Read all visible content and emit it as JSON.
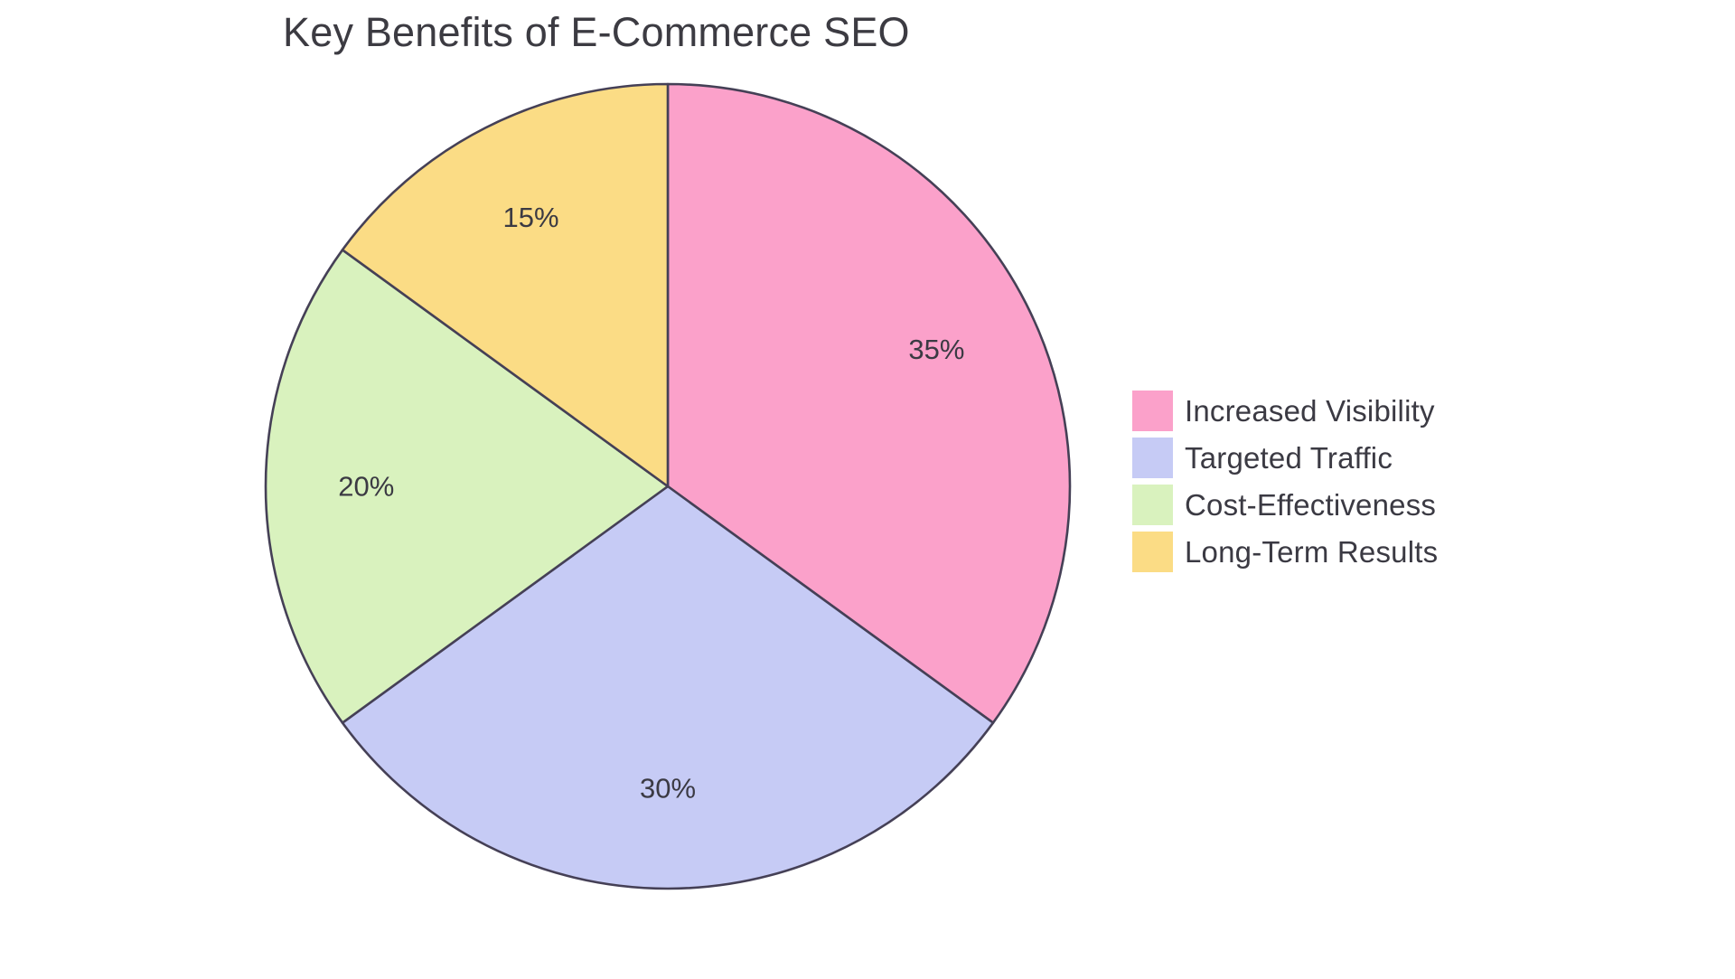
{
  "chart_data": {
    "type": "pie",
    "title": "Key Benefits of E-Commerce SEO",
    "labels": [
      "Increased Visibility",
      "Targeted Traffic",
      "Cost-Effectiveness",
      "Long-Term Results"
    ],
    "values": [
      35,
      30,
      20,
      15
    ],
    "value_labels": [
      "35%",
      "30%",
      "20%",
      "15%"
    ],
    "colors": [
      "#FBA1CA",
      "#C6CBF5",
      "#D9F2BE",
      "#FBDC85"
    ],
    "slice_stroke_color": "#454056",
    "text_color": "#3b3a43",
    "start_angle": "top",
    "direction": "clockwise",
    "legend_position": "right",
    "labels_inside": true
  }
}
